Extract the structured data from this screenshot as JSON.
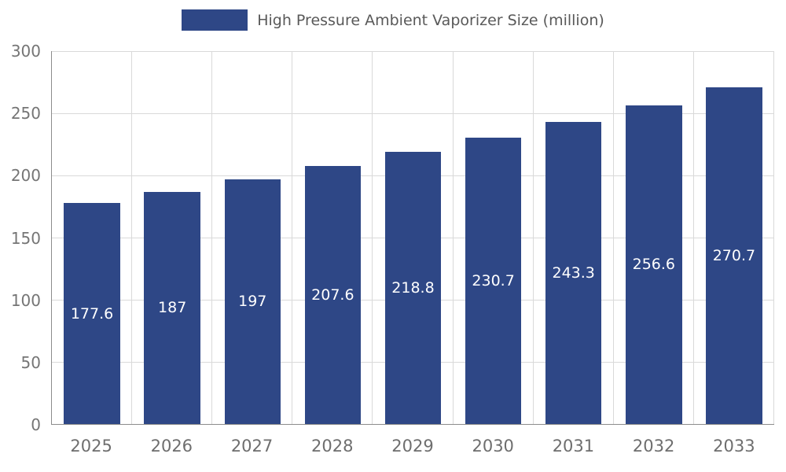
{
  "chart_data": {
    "type": "bar",
    "title": "High Pressure Ambient Vaporizer Size (million)",
    "categories": [
      "2025",
      "2026",
      "2027",
      "2028",
      "2029",
      "2030",
      "2031",
      "2032",
      "2033"
    ],
    "values": [
      177.6,
      187,
      197,
      207.6,
      218.8,
      230.7,
      243.3,
      256.6,
      270.7
    ],
    "value_labels": [
      "177.6",
      "187",
      "197",
      "207.6",
      "218.8",
      "230.7",
      "243.3",
      "256.6",
      "270.7"
    ],
    "xlabel": "",
    "ylabel": "",
    "ylim": [
      0,
      300
    ],
    "yticks": [
      0,
      50,
      100,
      150,
      200,
      250,
      300
    ],
    "grid": true,
    "legend_position": "top",
    "value_label_position": "center-of-bar",
    "colors": {
      "bar": "#2e4786",
      "value_label": "#ffffff",
      "tick_label": "#757575",
      "x_tick_label": "#6e6e6e",
      "legend_label": "#595959",
      "gridline": "#d9d9d9",
      "axis": "#8c8c8c",
      "background": "#ffffff"
    }
  }
}
